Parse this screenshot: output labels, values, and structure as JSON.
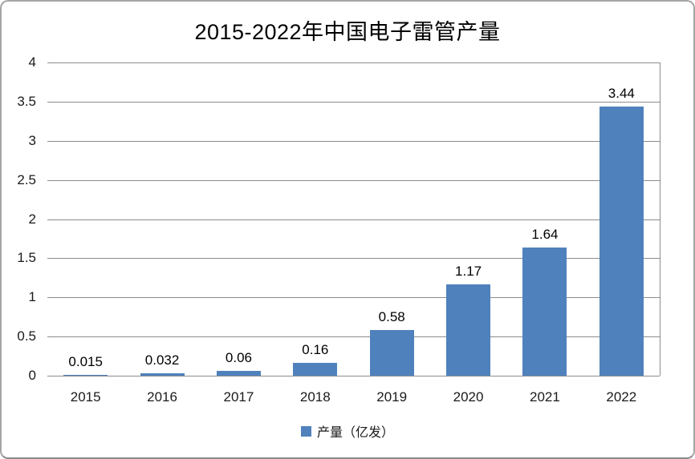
{
  "chart_data": {
    "type": "bar",
    "title": "2015-2022年中国电子雷管产量",
    "categories": [
      "2015",
      "2016",
      "2017",
      "2018",
      "2019",
      "2020",
      "2021",
      "2022"
    ],
    "values": [
      0.015,
      0.032,
      0.06,
      0.16,
      0.58,
      1.17,
      1.64,
      3.44
    ],
    "value_labels": [
      "0.015",
      "0.032",
      "0.06",
      "0.16",
      "0.58",
      "1.17",
      "1.64",
      "3.44"
    ],
    "series_name": "产量（亿发）",
    "legend_entries": [
      "产量（亿发）"
    ],
    "legend_position": "bottom",
    "xlabel": "",
    "ylabel": "",
    "ylim": [
      0,
      4
    ],
    "yticks": [
      "0",
      "0.5",
      "1",
      "1.5",
      "2",
      "2.5",
      "3",
      "3.5",
      "4"
    ],
    "ytick_values": [
      0,
      0.5,
      1,
      1.5,
      2,
      2.5,
      3,
      3.5,
      4
    ],
    "grid": true,
    "colors": {
      "bar": "#4f81bd",
      "gridline": "#8c8c8c",
      "frame_border": "#a6a6a6",
      "text": "#000000"
    }
  }
}
